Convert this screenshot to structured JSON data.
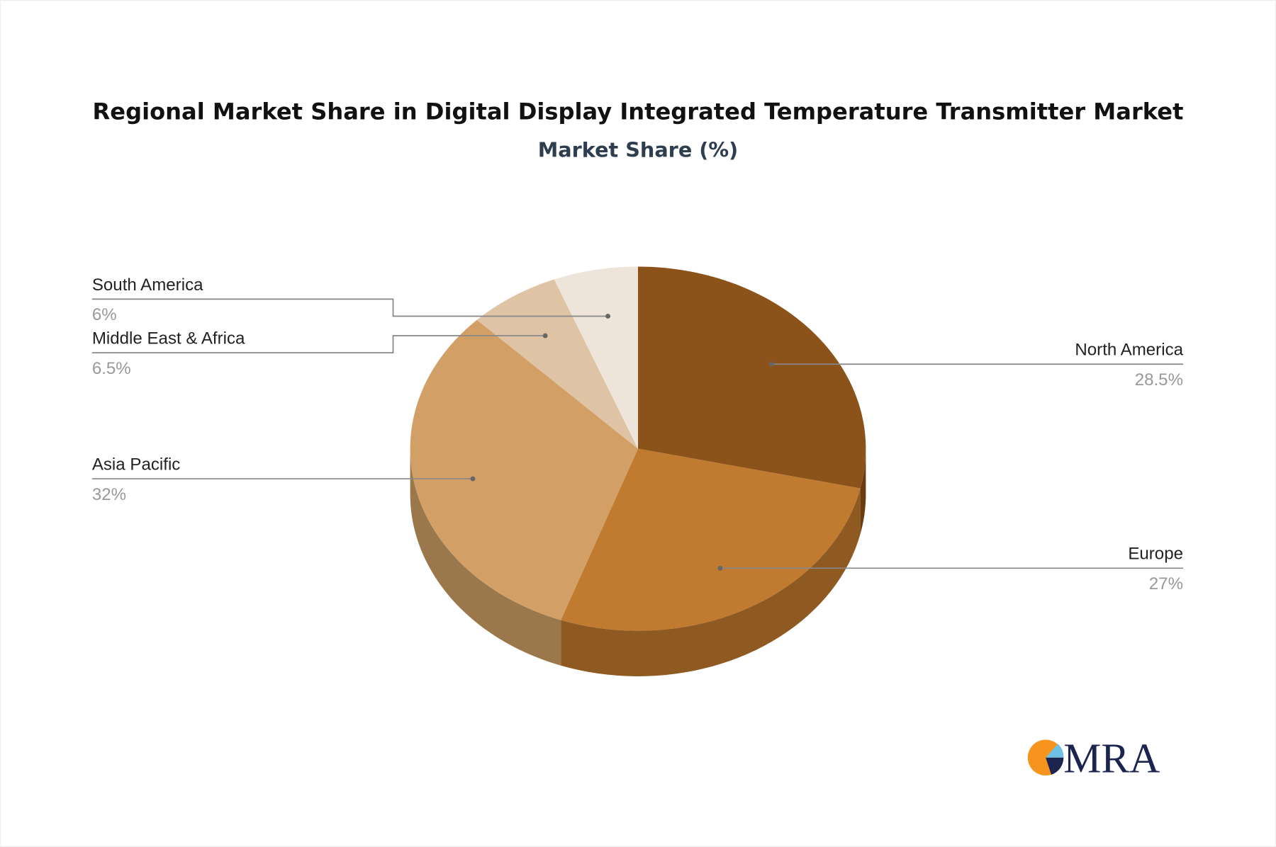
{
  "chart_data": {
    "type": "pie",
    "title": "Regional Market Share in Digital Display Integrated Temperature Transmitter Market",
    "subtitle": "Market Share (%)",
    "style": "3d",
    "slices": [
      {
        "label": "North America",
        "value": 28.5,
        "display": "28.5%",
        "color": "#8B5219",
        "side": "#6A3C10"
      },
      {
        "label": "Europe",
        "value": 27,
        "display": "27%",
        "color": "#C07B30",
        "side": "#8E5A22"
      },
      {
        "label": "Asia Pacific",
        "value": 32,
        "display": "32%",
        "color": "#D2A066",
        "side": "#9B784C"
      },
      {
        "label": "Middle East & Africa",
        "value": 6.5,
        "display": "6.5%",
        "color": "#DEC3A5",
        "side": "#A89078"
      },
      {
        "label": "South America",
        "value": 6,
        "display": "6%",
        "color": "#EEE4DA",
        "side": "#B5AA9F"
      }
    ]
  },
  "logo": {
    "text": "MRA",
    "orange": "#F7941D",
    "navy": "#1B2550",
    "light_blue": "#6EC1E4"
  }
}
